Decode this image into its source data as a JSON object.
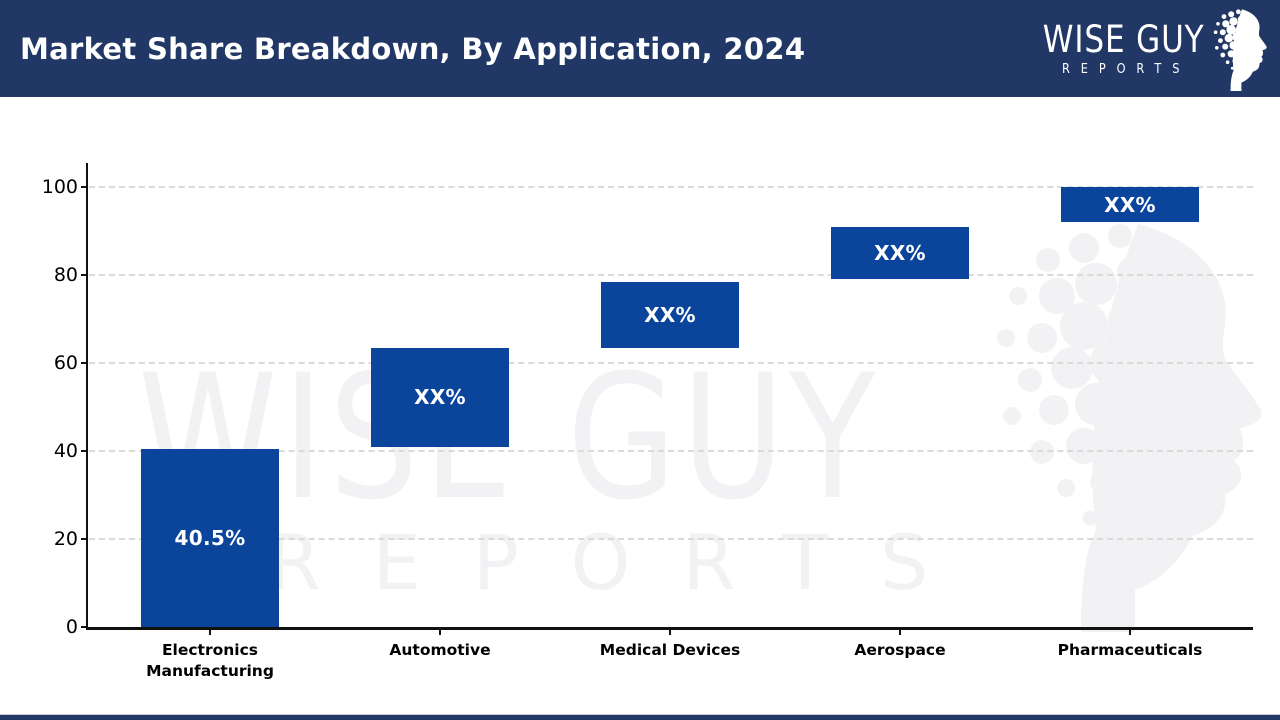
{
  "header": {
    "title": "Market Share Breakdown, By Application, 2024",
    "bg_color": "#213766",
    "logo": {
      "line1": "WISE GUY",
      "line2": "REPORTS"
    }
  },
  "watermark": {
    "line1": "WISE GUY",
    "line2": "REPORTS"
  },
  "chart_data": {
    "type": "bar",
    "variant": "waterfall",
    "title": "Market Share Breakdown, By Application, 2024",
    "categories": [
      "Electronics Manufacturing",
      "Automotive",
      "Medical Devices",
      "Aerospace",
      "Pharmaceuticals"
    ],
    "series": [
      {
        "name": "Market share (%)",
        "segments": [
          {
            "category": "Electronics Manufacturing",
            "start": 0,
            "end": 40.5,
            "label": "40.5%"
          },
          {
            "category": "Automotive",
            "start": 41,
            "end": 63.5,
            "label": "XX%"
          },
          {
            "category": "Medical Devices",
            "start": 63.5,
            "end": 78.5,
            "label": "XX%"
          },
          {
            "category": "Aerospace",
            "start": 79,
            "end": 91,
            "label": "XX%"
          },
          {
            "category": "Pharmaceuticals",
            "start": 92,
            "end": 100,
            "label": "XX%"
          }
        ]
      }
    ],
    "xlabel": "",
    "ylabel": "",
    "ylim": [
      0,
      105
    ],
    "yticks": [
      0,
      20,
      40,
      60,
      80,
      100
    ],
    "bar_color": "#0b449b",
    "bar_label_color": "#ffffff",
    "grid": {
      "axis": "y",
      "style": "dashed",
      "color": "#dadada"
    },
    "legend": false
  }
}
